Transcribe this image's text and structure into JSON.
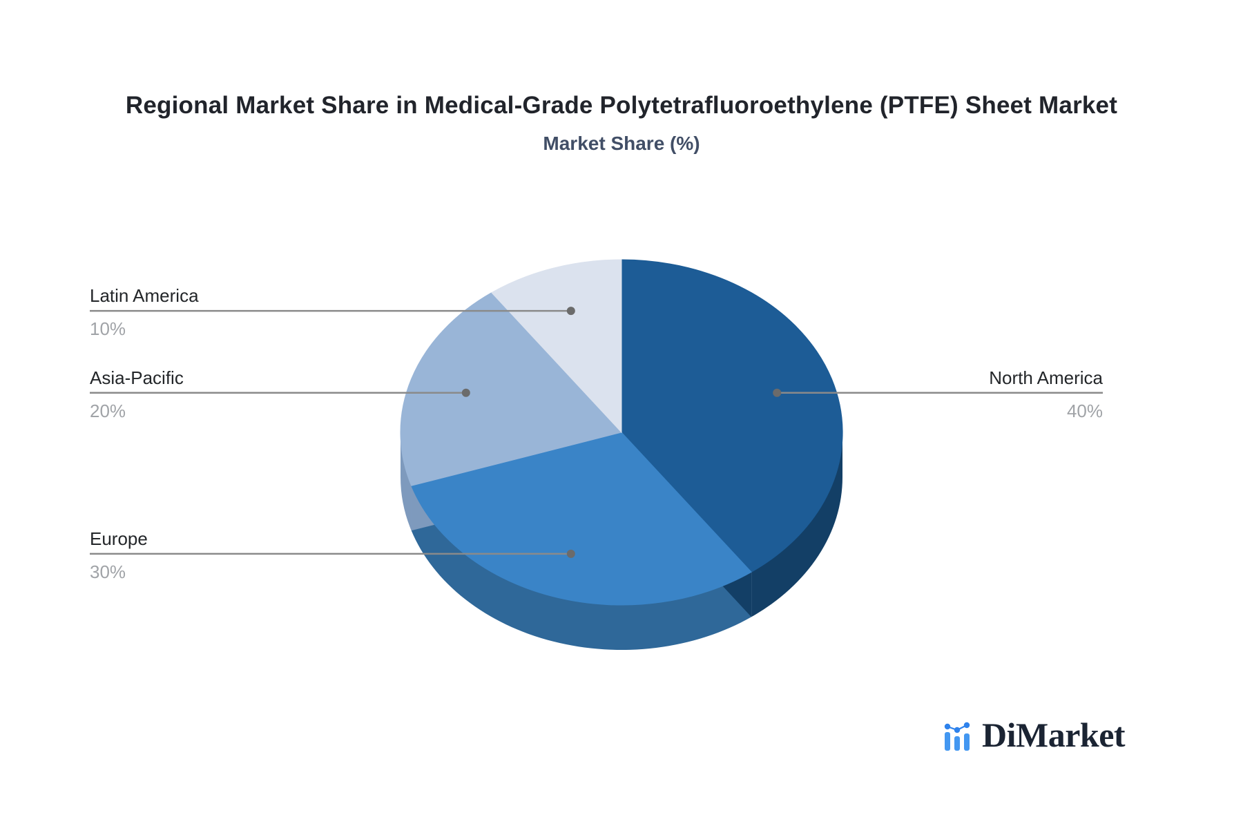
{
  "title": "Regional Market Share in Medical-Grade Polytetrafluoroethylene (PTFE) Sheet Market",
  "subtitle": "Market Share (%)",
  "chart_data": {
    "type": "pie",
    "title": "Regional Market Share in Medical-Grade Polytetrafluoroethylene (PTFE) Sheet Market",
    "subtitle": "Market Share (%)",
    "unit": "%",
    "style": "3d",
    "start_angle_deg": 0,
    "direction": "clockwise",
    "legend_position": "callout-labels",
    "categories": [
      "North America",
      "Europe",
      "Asia-Pacific",
      "Latin America"
    ],
    "values": [
      40,
      30,
      20,
      10
    ],
    "series": [
      {
        "name": "North America",
        "value": 40,
        "pct": "40%",
        "color": "#1D5C96",
        "side_color": "#133F66"
      },
      {
        "name": "Europe",
        "value": 30,
        "pct": "30%",
        "color": "#3A84C7",
        "side_color": "#2F6899"
      },
      {
        "name": "Asia-Pacific",
        "value": 20,
        "pct": "20%",
        "color": "#99B5D7",
        "side_color": "#7E9ABD"
      },
      {
        "name": "Latin America",
        "value": 10,
        "pct": "10%",
        "color": "#DBE2EE",
        "side_color": "#BCC7D8"
      }
    ],
    "leader_line_color": "#8A8A8A",
    "leader_dot_color": "#6B6B6B"
  },
  "logo": {
    "text": "DiMarket",
    "icon": "bar-line-chart-icon",
    "text_color": "#1B2433",
    "accent_color": "#4397F1"
  }
}
